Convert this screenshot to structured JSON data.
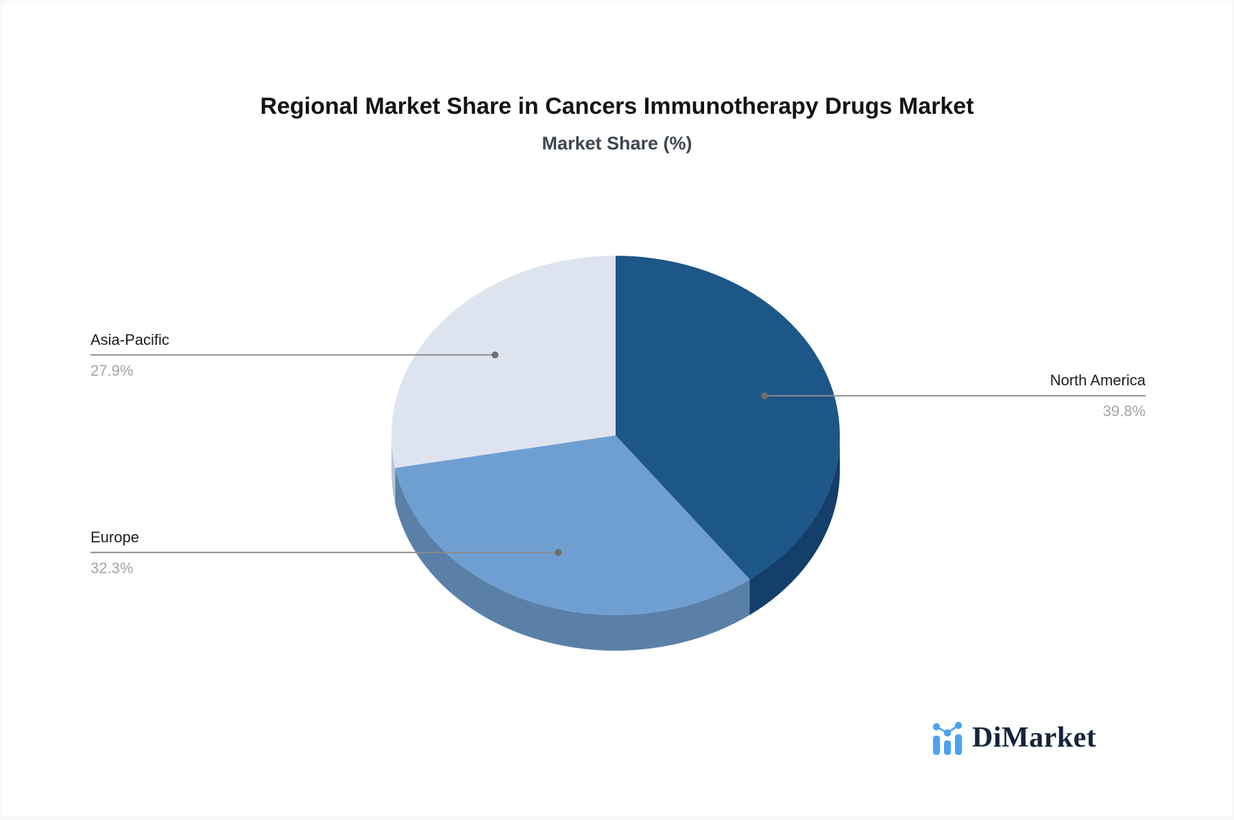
{
  "page": {
    "background": "#ffffff",
    "edge_strip_color": "#f8f9fb"
  },
  "chart_data": {
    "type": "pie",
    "style": "3d",
    "title": "Regional Market Share in Cancers Immunotherapy Drugs Market",
    "subtitle": "Market Share (%)",
    "unit": "%",
    "start_angle_deg": 0,
    "direction": "clockwise",
    "legend_position": "none",
    "slices": [
      {
        "label": "North America",
        "value": 39.8,
        "display": "39.8%",
        "color": "#1d5787",
        "side_color": "#143f6a",
        "label_side": "right"
      },
      {
        "label": "Europe",
        "value": 32.3,
        "display": "32.3%",
        "color": "#6f9fd1",
        "side_color": "#5b80a8",
        "label_side": "left"
      },
      {
        "label": "Asia-Pacific",
        "value": 27.9,
        "display": "27.9%",
        "color": "#dee4ef",
        "side_color": "#b9c5d6",
        "label_side": "left"
      }
    ],
    "label_color": "#1e1e1e",
    "value_color": "#a1a4aa",
    "leader_line_color": "#8c8c8c",
    "leader_dot_color": "#6e6e6e"
  },
  "branding": {
    "logo_text": "DiMarket",
    "logo_text_color": "#16233b",
    "icon": "bar-chart-line-icon",
    "icon_color": "#4aa3f2"
  }
}
